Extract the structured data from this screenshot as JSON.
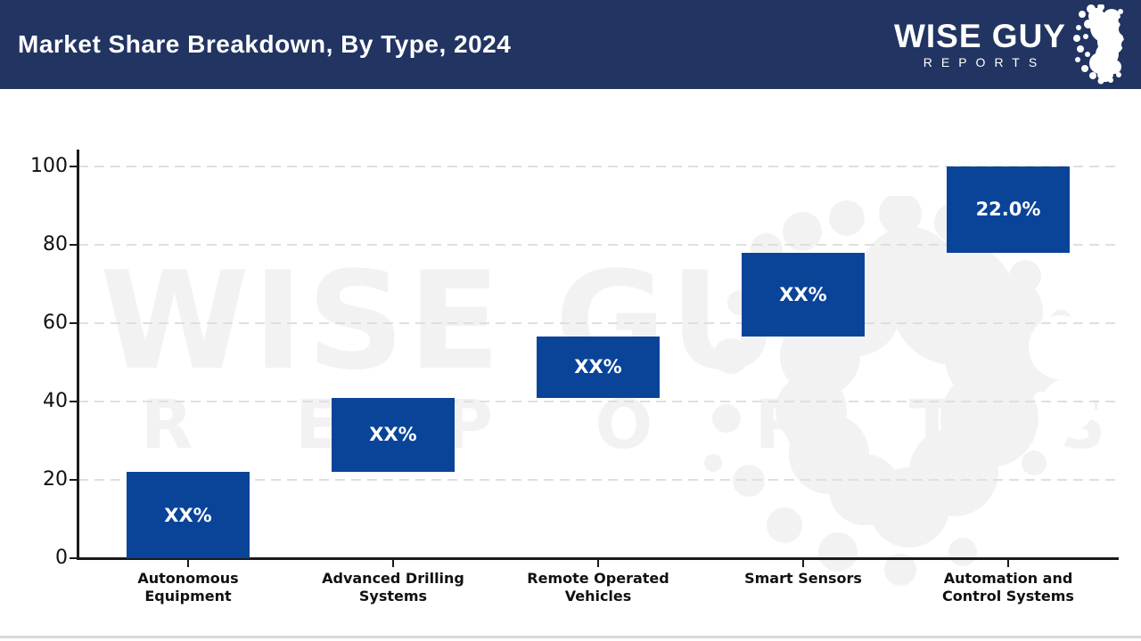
{
  "header": {
    "title": "Market Share Breakdown, By Type, 2024",
    "brand": {
      "wordmark": "WISE GUY",
      "subtext": "REPORTS"
    }
  },
  "watermark": {
    "line1": "WISE GUY",
    "line2": "R E P O R T S"
  },
  "colors": {
    "header_bg": "#213462",
    "bar": "#0A4499",
    "bar_label": "#FFFFFF",
    "grid": "#DFDFDF",
    "axis": "#1A1A1A",
    "watermark": "#F2F2F3"
  },
  "chart_data": {
    "type": "bar",
    "variant": "waterfall",
    "title": "Market Share Breakdown, By Type, 2024",
    "xlabel": "",
    "ylabel": "",
    "ylim": [
      0,
      104
    ],
    "yticks": [
      0,
      20,
      40,
      60,
      80,
      100
    ],
    "grid": "horizontal dashed gridlines at each y tick",
    "legend": "none",
    "categories": [
      "Autonomous Equipment",
      "Advanced Drilling Systems",
      "Remote Operated Vehicles",
      "Smart Sensors",
      "Automation and Control Systems"
    ],
    "category_label_lines": [
      "Autonomous\nEquipment",
      "Advanced Drilling\nSystems",
      "Remote Operated\nVehicles",
      "Smart Sensors",
      "Automation and\nControl Systems"
    ],
    "segments": [
      {
        "category": "Autonomous Equipment",
        "start": 0,
        "end": 22,
        "label": "XX%"
      },
      {
        "category": "Advanced Drilling Systems",
        "start": 22,
        "end": 41,
        "label": "XX%"
      },
      {
        "category": "Remote Operated Vehicles",
        "start": 41,
        "end": 56.5,
        "label": "XX%"
      },
      {
        "category": "Smart Sensors",
        "start": 56.5,
        "end": 78,
        "label": "XX%"
      },
      {
        "category": "Automation and Control Systems",
        "start": 78,
        "end": 100,
        "label": "22.0%"
      }
    ]
  }
}
